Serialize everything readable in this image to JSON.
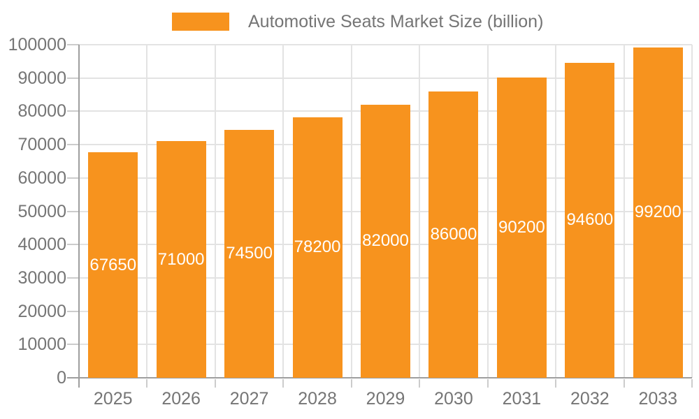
{
  "colors": {
    "bar": "#F7931E",
    "axis_text": "#757575",
    "gridline": "#e3e3e3",
    "axis_line": "#9e9e9e",
    "tick_mark": "#cccccc",
    "bar_value_text": "#ffffff",
    "background": "#ffffff"
  },
  "legend": {
    "label": "Automotive Seats Market Size (billion)",
    "position": "top-center"
  },
  "chart_data": {
    "type": "bar",
    "title": "Automotive Seats Market Size (billion)",
    "series_name": "Automotive Seats Market Size (billion)",
    "categories": [
      "2025",
      "2026",
      "2027",
      "2028",
      "2029",
      "2030",
      "2031",
      "2032",
      "2033"
    ],
    "values": [
      67650,
      71000,
      74500,
      78200,
      82000,
      86000,
      90200,
      94600,
      99200
    ],
    "bar_value_labels": [
      "67650",
      "71000",
      "74500",
      "78200",
      "82000",
      "86000",
      "90200",
      "94600",
      "99200"
    ],
    "value_labels_position": "inside-middle",
    "xlabel": "",
    "ylabel": "",
    "ylim": [
      0,
      100000
    ],
    "yticks": [
      0,
      10000,
      20000,
      30000,
      40000,
      50000,
      60000,
      70000,
      80000,
      90000,
      100000
    ],
    "ytick_labels": [
      "0",
      "10000",
      "20000",
      "30000",
      "40000",
      "50000",
      "60000",
      "70000",
      "80000",
      "90000",
      "100000"
    ],
    "grid": true,
    "legend_position": "top-center"
  }
}
